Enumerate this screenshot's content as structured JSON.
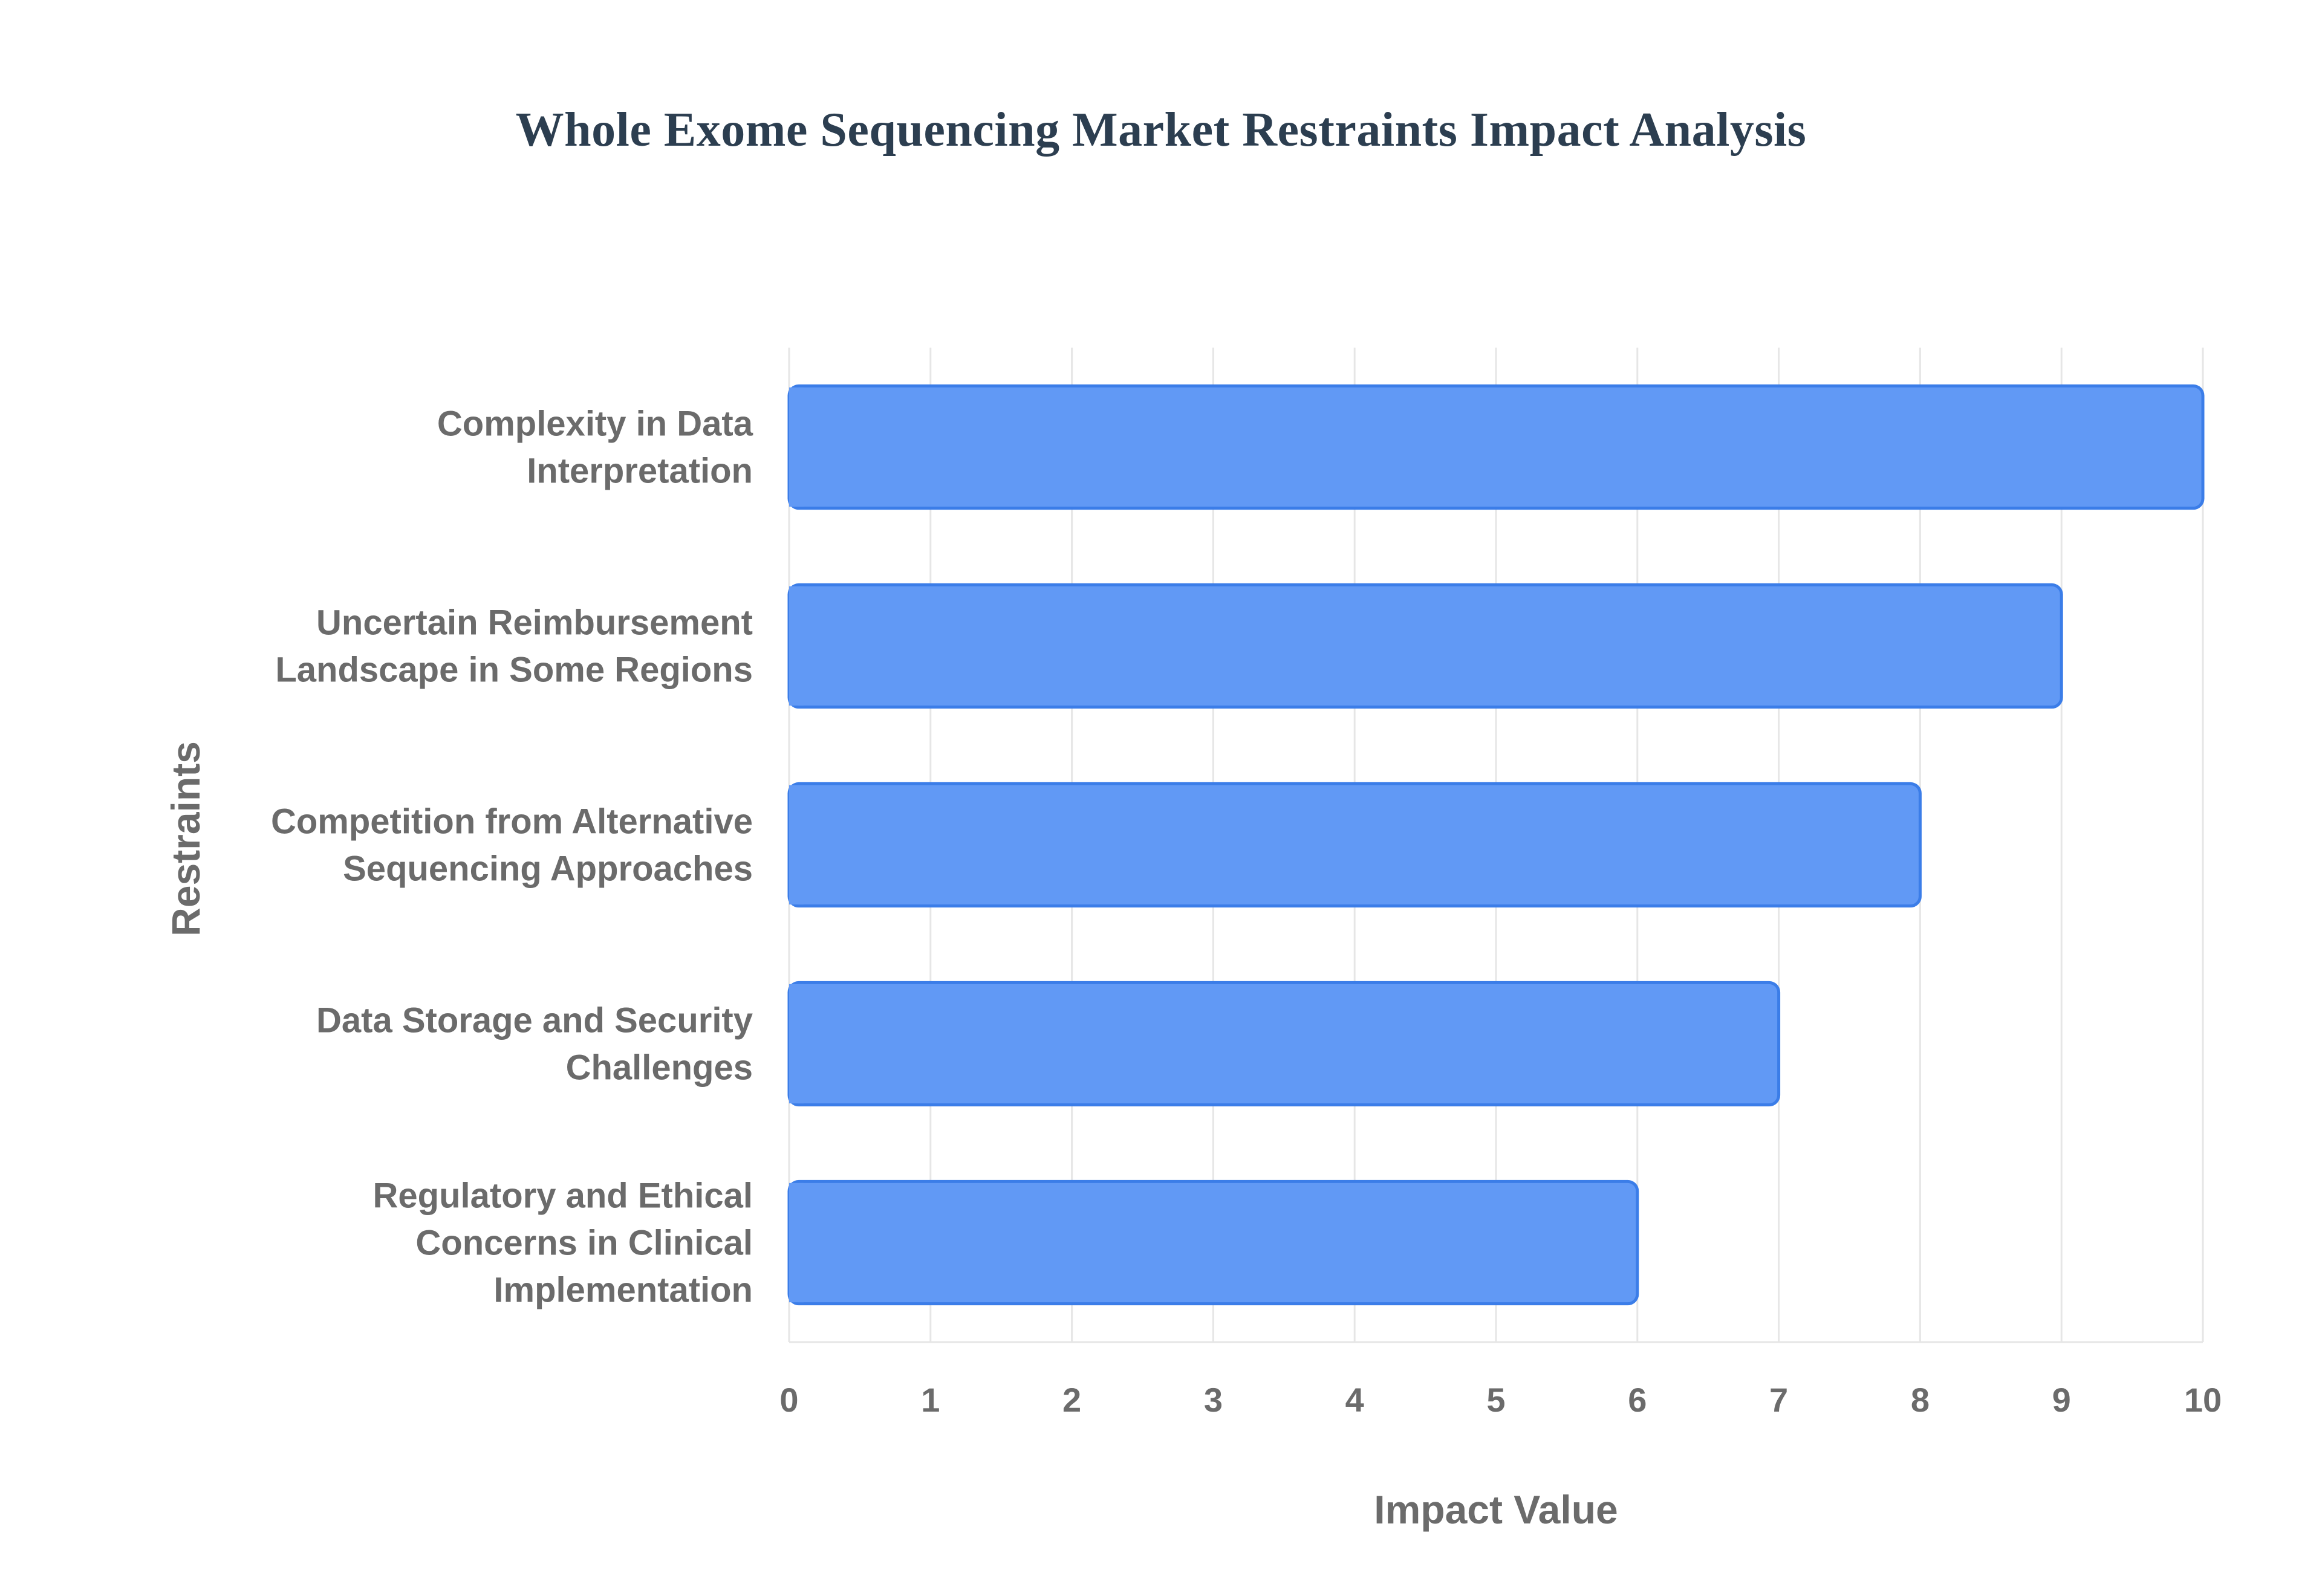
{
  "chart_data": {
    "type": "bar",
    "orientation": "horizontal",
    "title": "Whole Exome Sequencing Market Restraints Impact Analysis",
    "xlabel": "Impact Value",
    "ylabel": "Restraints",
    "categories": [
      "Complexity in Data Interpretation",
      "Uncertain Reimbursement Landscape in Some Regions",
      "Competition from Alternative Sequencing Approaches",
      "Data Storage and Security Challenges",
      "Regulatory and Ethical Concerns in Clinical Implementation"
    ],
    "category_lines": [
      [
        "Complexity in Data",
        "Interpretation"
      ],
      [
        "Uncertain Reimbursement",
        "Landscape in Some Regions"
      ],
      [
        "Competition from Alternative",
        "Sequencing Approaches"
      ],
      [
        "Data Storage and Security",
        "Challenges"
      ],
      [
        "Regulatory and Ethical",
        "Concerns in Clinical",
        "Implementation"
      ]
    ],
    "values": [
      10,
      9,
      8,
      7,
      6
    ],
    "xlim": [
      0,
      10
    ],
    "xticks": [
      "0",
      "1",
      "2",
      "3",
      "4",
      "5",
      "6",
      "7",
      "8",
      "9",
      "10"
    ],
    "grid": true,
    "legend": "none",
    "colors": {
      "bar_fill": "#6199f5",
      "bar_stroke": "#3b7de8",
      "grid": "#e6e6e6",
      "axis_text": "#6b6b6b",
      "title": "#2c3e50"
    }
  }
}
